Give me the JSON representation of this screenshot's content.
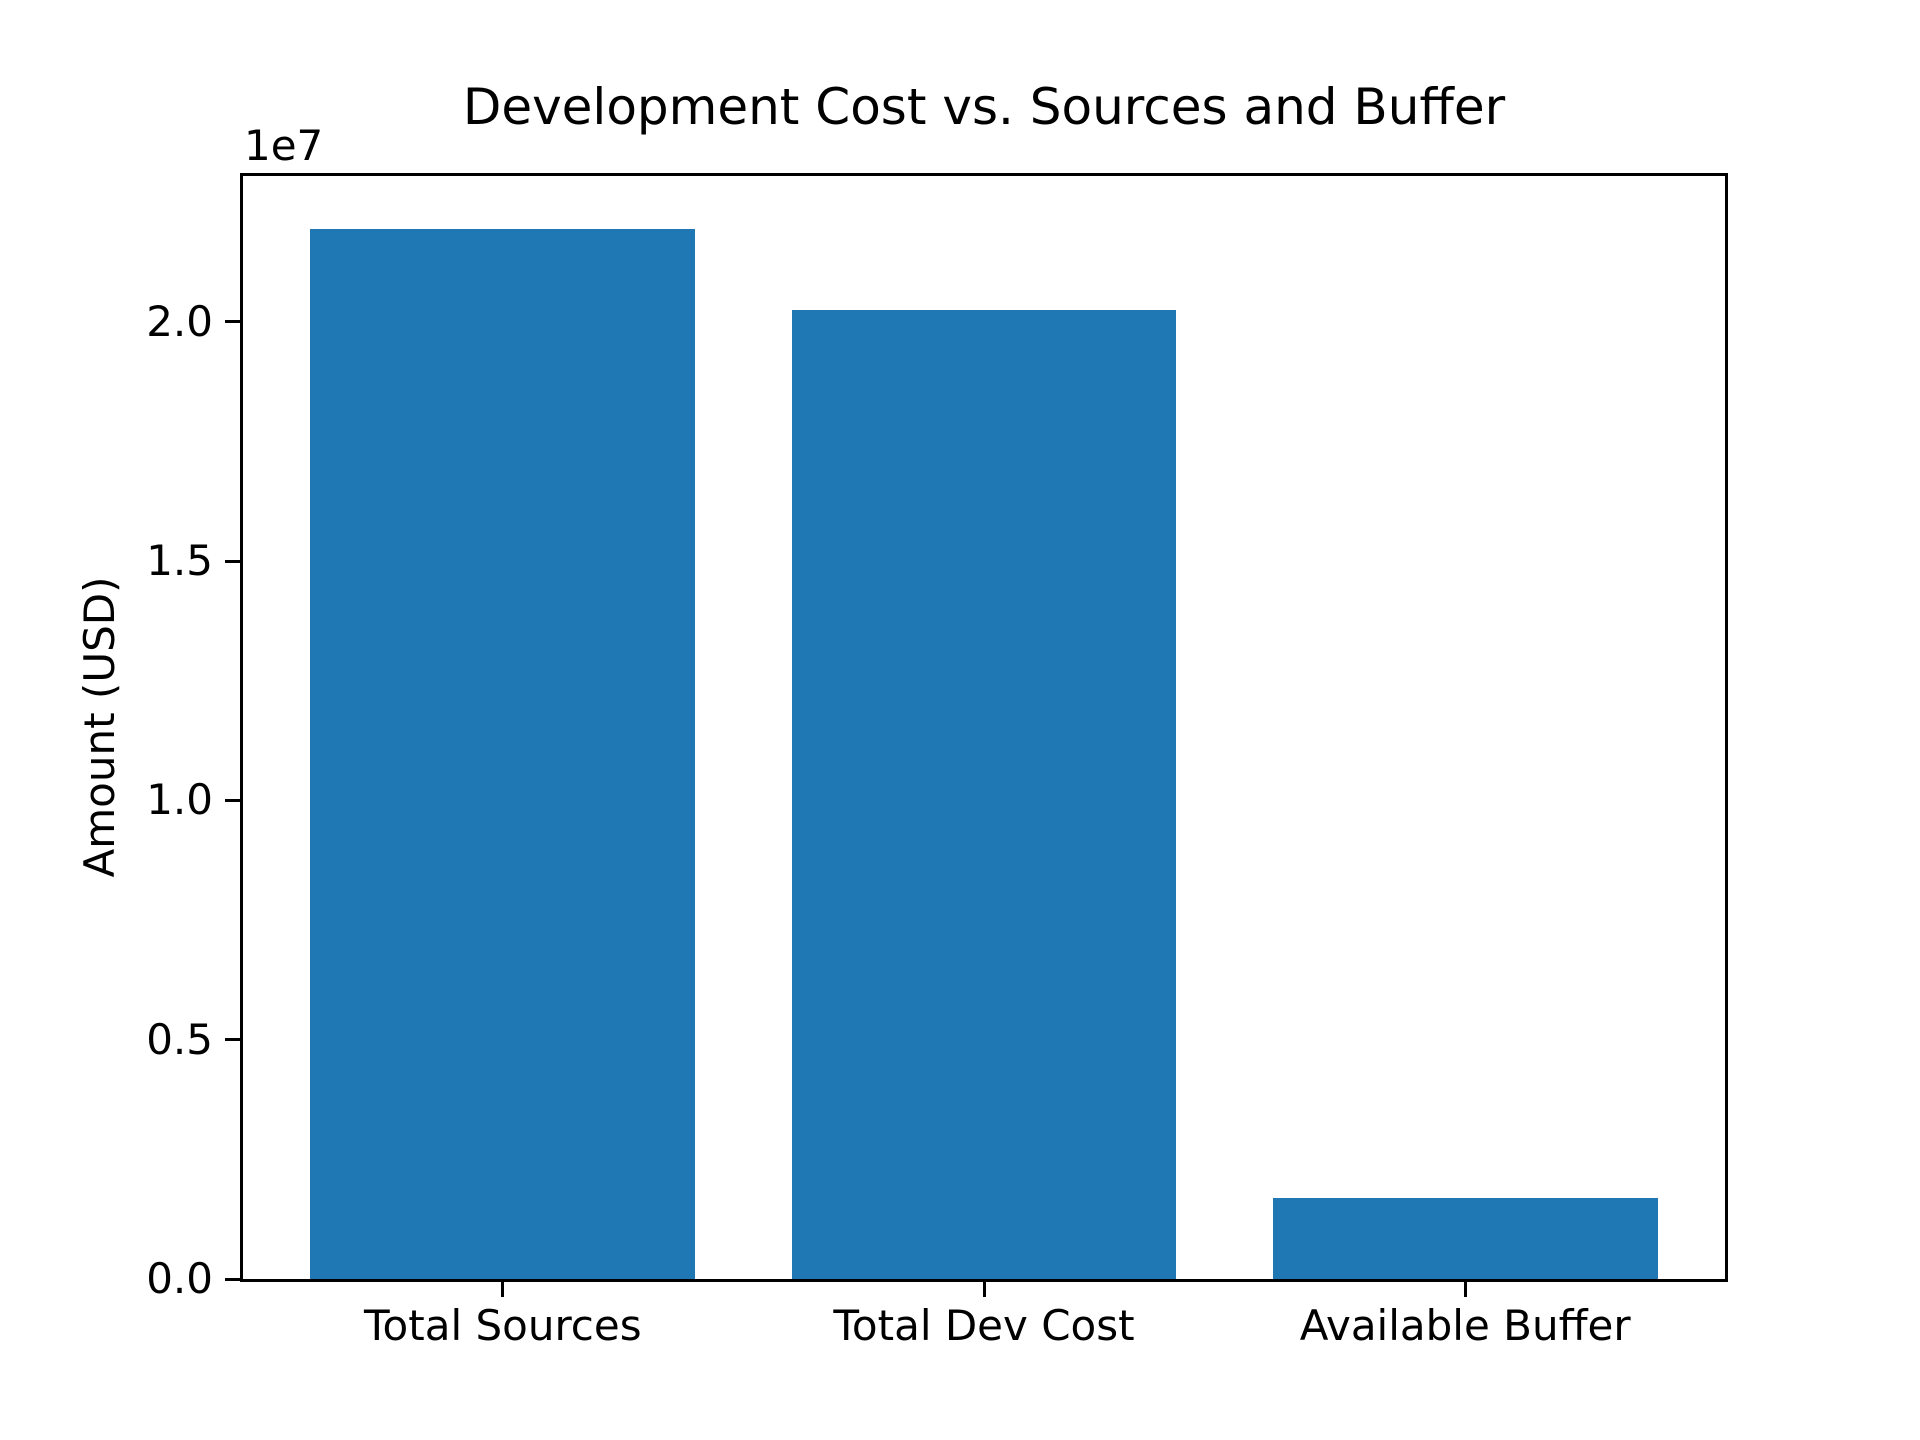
{
  "chart_data": {
    "type": "bar",
    "title": "Development Cost vs. Sources and Buffer",
    "xlabel": "",
    "ylabel": "Amount (USD)",
    "offset_text": "1e7",
    "categories": [
      "Total Sources",
      "Total Dev Cost",
      "Available Buffer"
    ],
    "values": [
      21950000,
      20250000,
      1700000
    ],
    "bar_color": "#1f77b4",
    "spine_color": "#000000",
    "background_color": "#ffffff",
    "bar_width_units": 0.8,
    "xlim": [
      -0.54,
      2.54
    ],
    "ylim": [
      0,
      23050000
    ],
    "yticks": [
      {
        "value": 0,
        "label": "0.0"
      },
      {
        "value": 5000000,
        "label": "0.5"
      },
      {
        "value": 10000000,
        "label": "1.0"
      },
      {
        "value": 15000000,
        "label": "1.5"
      },
      {
        "value": 20000000,
        "label": "2.0"
      }
    ],
    "grid": false,
    "legend": "none"
  }
}
